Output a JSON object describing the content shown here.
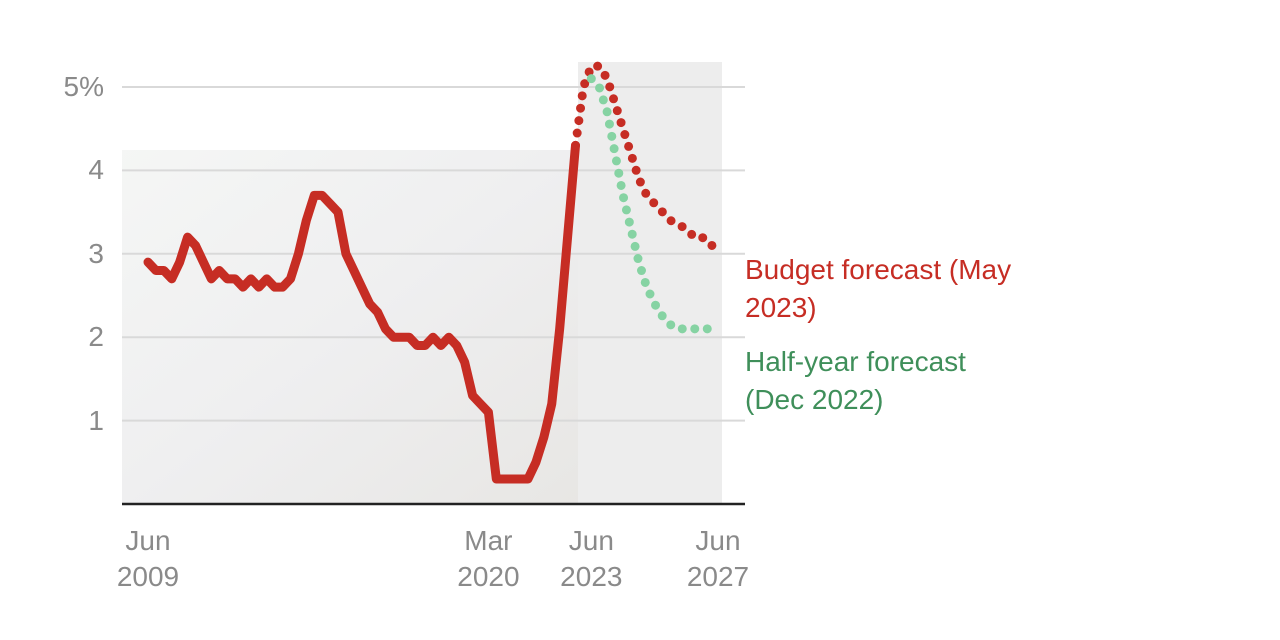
{
  "chart_data": {
    "type": "line",
    "x": [
      "2009-06",
      "2009-09",
      "2009-12",
      "2010-03",
      "2010-06",
      "2010-09",
      "2010-12",
      "2011-03",
      "2011-06",
      "2011-09",
      "2011-12",
      "2012-03",
      "2012-06",
      "2012-09",
      "2012-12",
      "2013-03",
      "2013-06",
      "2013-09",
      "2013-12",
      "2014-03",
      "2014-06",
      "2014-09",
      "2014-12",
      "2015-03",
      "2015-06",
      "2015-09",
      "2015-12",
      "2016-03",
      "2016-06",
      "2016-09",
      "2016-12",
      "2017-03",
      "2017-06",
      "2017-09",
      "2017-12",
      "2018-03",
      "2018-06",
      "2018-09",
      "2018-12",
      "2019-03",
      "2019-06",
      "2019-09",
      "2019-12",
      "2020-03",
      "2020-06",
      "2020-09",
      "2020-12",
      "2021-03",
      "2021-06",
      "2021-09",
      "2021-12",
      "2022-03",
      "2022-06",
      "2022-09",
      "2022-12",
      "2023-03",
      "2023-06",
      "2023-09",
      "2023-12",
      "2024-03",
      "2024-06",
      "2024-09",
      "2024-12",
      "2025-03",
      "2025-06",
      "2025-09",
      "2025-12",
      "2026-03",
      "2026-06",
      "2026-09",
      "2026-12",
      "2027-03",
      "2027-06"
    ],
    "series": [
      {
        "color": "#c62d24",
        "style": "solid",
        "values": [
          2.9,
          2.8,
          2.8,
          2.7,
          2.9,
          3.2,
          3.1,
          2.9,
          2.7,
          2.8,
          2.7,
          2.7,
          2.6,
          2.7,
          2.6,
          2.7,
          2.6,
          2.6,
          2.7,
          3.0,
          3.4,
          3.7,
          3.7,
          3.6,
          3.5,
          3.0,
          2.8,
          2.6,
          2.4,
          2.3,
          2.1,
          2.0,
          2.0,
          2.0,
          1.9,
          1.9,
          2.0,
          1.9,
          2.0,
          1.9,
          1.7,
          1.3,
          1.2,
          1.1,
          0.3,
          0.3,
          0.3,
          0.3,
          0.3,
          0.5,
          0.8,
          1.2,
          2.1,
          3.2,
          4.3,
          null,
          null,
          null,
          null,
          null,
          null,
          null,
          null,
          null,
          null,
          null,
          null,
          null,
          null,
          null,
          null,
          null,
          null
        ]
      },
      {
        "name": "Budget forecast (May 2023)",
        "color": "#c62d24",
        "label_color": "#c62d24",
        "style": "dotted",
        "values": [
          null,
          null,
          null,
          null,
          null,
          null,
          null,
          null,
          null,
          null,
          null,
          null,
          null,
          null,
          null,
          null,
          null,
          null,
          null,
          null,
          null,
          null,
          null,
          null,
          null,
          null,
          null,
          null,
          null,
          null,
          null,
          null,
          null,
          null,
          null,
          null,
          null,
          null,
          null,
          null,
          null,
          null,
          null,
          null,
          null,
          null,
          null,
          null,
          null,
          null,
          null,
          null,
          null,
          null,
          4.3,
          5.0,
          5.25,
          5.25,
          5.1,
          4.8,
          4.5,
          4.2,
          3.9,
          3.7,
          3.6,
          3.5,
          3.4,
          3.35,
          3.3,
          3.2,
          3.2,
          3.1,
          3.1
        ]
      },
      {
        "name": "Half-year forecast (Dec 2022)",
        "color": "#86d3a3",
        "label_color": "#3f8f5a",
        "style": "dotted",
        "values": [
          null,
          null,
          null,
          null,
          null,
          null,
          null,
          null,
          null,
          null,
          null,
          null,
          null,
          null,
          null,
          null,
          null,
          null,
          null,
          null,
          null,
          null,
          null,
          null,
          null,
          null,
          null,
          null,
          null,
          null,
          null,
          null,
          null,
          null,
          null,
          null,
          null,
          null,
          null,
          null,
          null,
          null,
          null,
          null,
          null,
          null,
          null,
          null,
          null,
          null,
          null,
          null,
          null,
          null,
          null,
          null,
          5.1,
          5.0,
          4.7,
          4.2,
          3.7,
          3.3,
          2.9,
          2.6,
          2.4,
          2.25,
          2.15,
          2.1,
          2.1,
          2.1,
          2.1,
          2.1,
          2.1
        ]
      }
    ],
    "xlim": [
      "2009-06",
      "2027-06"
    ],
    "xticks": [
      {
        "value": "2009-06",
        "label": "Jun 2009"
      },
      {
        "value": "2020-03",
        "label": "Mar 2020"
      },
      {
        "value": "2023-06",
        "label": "Jun 2023"
      },
      {
        "value": "2027-06",
        "label": "Jun 2027"
      }
    ],
    "ylim": [
      0,
      5.3
    ],
    "yticks": [
      1,
      2,
      3,
      4,
      {
        "value": 5,
        "label": "5%"
      }
    ],
    "grid": true
  }
}
